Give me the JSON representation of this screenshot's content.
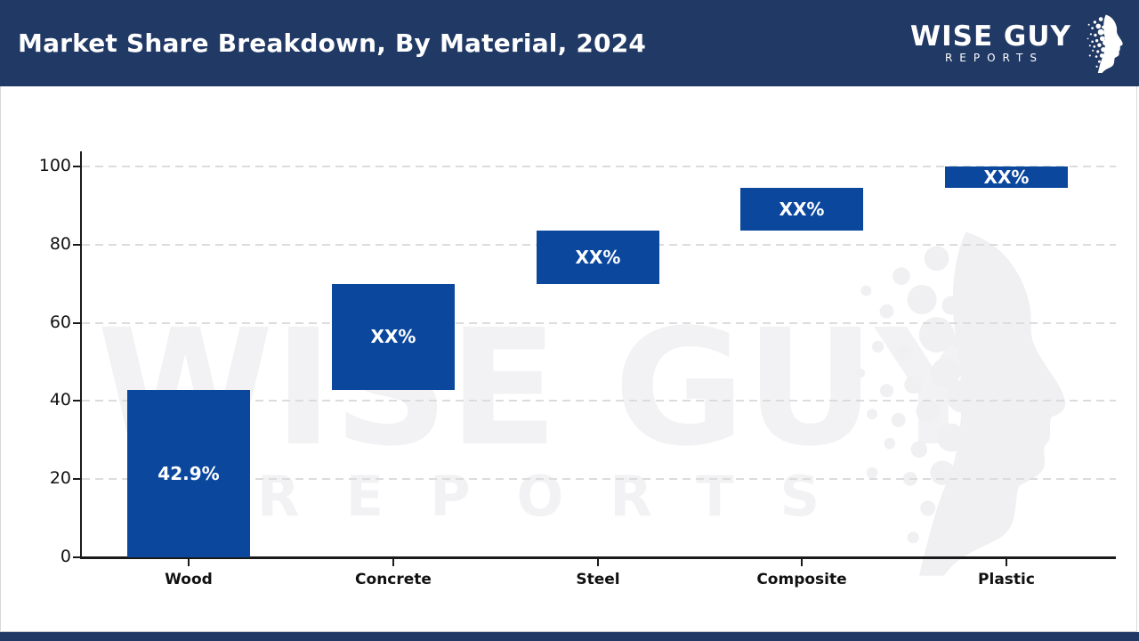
{
  "header": {
    "title": "Market Share Breakdown, By Material, 2024",
    "bg_color": "#213965",
    "logo": {
      "line1": "WISE GUY",
      "line2": "REPORTS"
    }
  },
  "watermark": {
    "line1": "WISE GUY",
    "line2": "REPORTS"
  },
  "chart_data": {
    "type": "bar",
    "subtype": "waterfall",
    "title": "Market Share Breakdown, By Material, 2024",
    "categories": [
      "Wood",
      "Concrete",
      "Steel",
      "Composite",
      "Plastic"
    ],
    "segments": [
      {
        "category": "Wood",
        "start": 0,
        "end": 42.9,
        "label": "42.9%"
      },
      {
        "category": "Concrete",
        "start": 42.9,
        "end": 69.9,
        "label": "XX%"
      },
      {
        "category": "Steel",
        "start": 69.9,
        "end": 83.7,
        "label": "XX%"
      },
      {
        "category": "Composite",
        "start": 83.7,
        "end": 94.6,
        "label": "XX%"
      },
      {
        "category": "Plastic",
        "start": 94.6,
        "end": 100,
        "label": "XX%"
      }
    ],
    "yticks": [
      0,
      20,
      40,
      60,
      80,
      100
    ],
    "ylim": [
      0,
      100
    ],
    "xlabel": "",
    "ylabel": "",
    "bar_color": "#0b479d",
    "grid": "dashed-horizontal",
    "legend": "none"
  }
}
